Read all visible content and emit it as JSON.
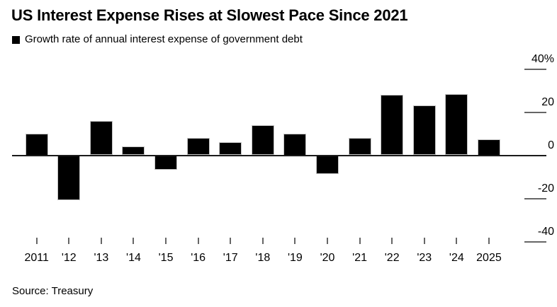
{
  "header": {
    "title": "US Interest Expense Rises at Slowest Pace Since 2021",
    "legend_label": "Growth rate of annual interest expense of government debt"
  },
  "footer": {
    "source": "Source: Treasury"
  },
  "colors": {
    "bar": "#000000",
    "bar_outline": "#c4c4c4",
    "zero_line": "#1a1a1a",
    "tick": "#666666",
    "text": "#000000",
    "background": "#ffffff"
  },
  "chart_data": {
    "type": "bar",
    "title": "US Interest Expense Rises at Slowest Pace Since 2021",
    "legend": "Growth rate of annual interest expense of government debt",
    "unit": "percent",
    "categories": [
      "2011",
      "'12",
      "'13",
      "'14",
      "'15",
      "'16",
      "'17",
      "'18",
      "'19",
      "'20",
      "'21",
      "'22",
      "'23",
      "'24",
      "2025"
    ],
    "values": [
      10,
      -21,
      16,
      4,
      -7,
      8,
      6,
      14,
      10,
      -9,
      8,
      28,
      23,
      28.5,
      7.5
    ],
    "xlabel": "",
    "ylabel": "",
    "y_axis": {
      "side": "right",
      "tick_labels": [
        "40%",
        "20",
        "0",
        "-20",
        "-40"
      ],
      "tick_values": [
        40,
        20,
        0,
        -20,
        -40
      ],
      "ylim": [
        -45,
        45
      ],
      "grid": false
    },
    "legend_position": "top-left",
    "source": "Source: Treasury"
  }
}
